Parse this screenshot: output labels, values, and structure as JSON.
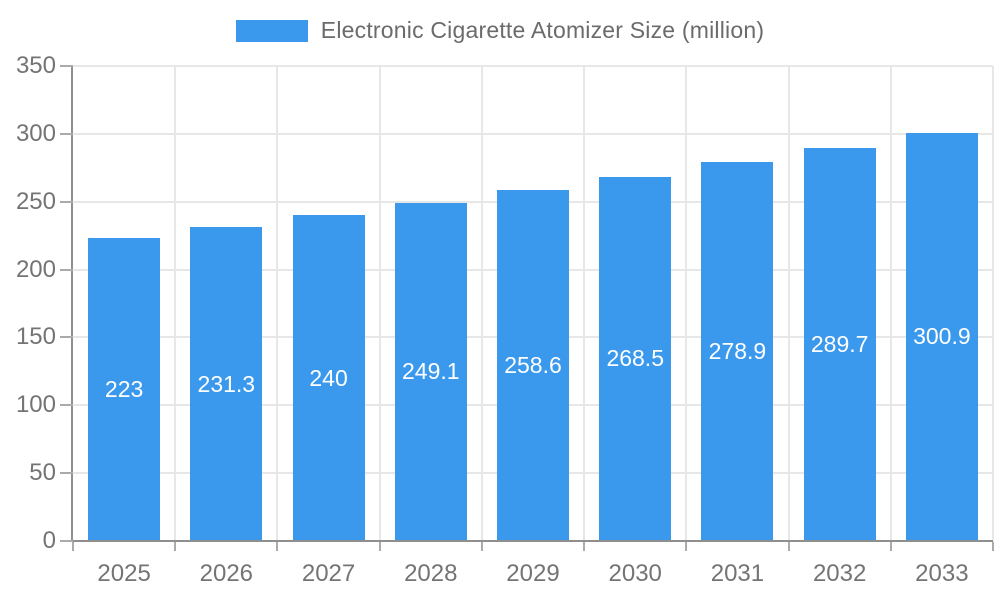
{
  "legend": {
    "label": "Electronic Cigarette Atomizer Size (million)"
  },
  "chart_data": {
    "type": "bar",
    "title": "Electronic Cigarette Atomizer Size (million)",
    "series_name": "Electronic Cigarette Atomizer Size (million)",
    "categories": [
      "2025",
      "2026",
      "2027",
      "2028",
      "2029",
      "2030",
      "2031",
      "2032",
      "2033"
    ],
    "values": [
      223,
      231.3,
      240,
      249.1,
      258.6,
      268.5,
      278.9,
      289.7,
      300.9
    ],
    "value_labels": [
      "223",
      "231.3",
      "240",
      "249.1",
      "258.6",
      "268.5",
      "278.9",
      "289.7",
      "300.9"
    ],
    "xlabel": "",
    "ylabel": "",
    "ylim": [
      0,
      350
    ],
    "yticks": [
      "0",
      "50",
      "100",
      "150",
      "200",
      "250",
      "300",
      "350"
    ],
    "ytick_interval": 50,
    "grid": true,
    "legend_position": "top"
  },
  "colors": {
    "bar": "#3A99ED",
    "grid": "#E7E7E7",
    "axis": "#8F8F8F",
    "tick": "#ABABAB",
    "tick_label": "#747474",
    "legend_text": "#6B6B6B",
    "value_label": "#FFFFFF",
    "background": "#FFFFFF"
  }
}
